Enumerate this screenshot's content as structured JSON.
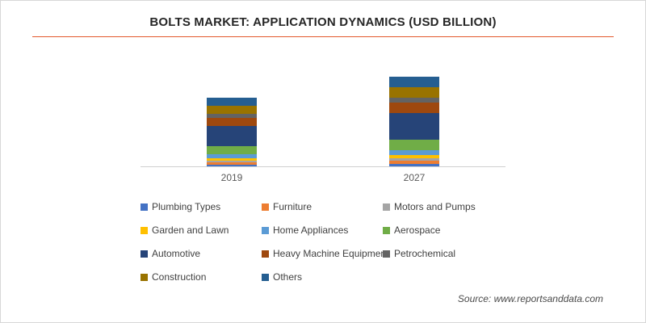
{
  "chart_data": {
    "type": "bar",
    "stacked": true,
    "title": "BOLTS MARKET: APPLICATION DYNAMICS (USD BILLION)",
    "categories": [
      "2019",
      "2027"
    ],
    "series": [
      {
        "name": "Plumbing Types",
        "color": "#4472C4",
        "values": [
          0.2,
          0.3
        ]
      },
      {
        "name": "Furniture",
        "color": "#ED7D31",
        "values": [
          0.3,
          0.4
        ]
      },
      {
        "name": "Motors and Pumps",
        "color": "#A5A5A5",
        "values": [
          0.2,
          0.3
        ]
      },
      {
        "name": "Garden and Lawn",
        "color": "#FFC000",
        "values": [
          0.3,
          0.4
        ]
      },
      {
        "name": "Home Appliances",
        "color": "#5B9BD5",
        "values": [
          0.5,
          0.6
        ]
      },
      {
        "name": "Aerospace",
        "color": "#70AD47",
        "values": [
          1.0,
          1.3
        ]
      },
      {
        "name": "Automotive",
        "color": "#264478",
        "values": [
          2.5,
          3.3
        ]
      },
      {
        "name": "Heavy Machine Equipment",
        "color": "#9E480E",
        "values": [
          1.0,
          1.3
        ]
      },
      {
        "name": "Petrochemical",
        "color": "#636363",
        "values": [
          0.5,
          0.6
        ]
      },
      {
        "name": "Construction",
        "color": "#997300",
        "values": [
          1.0,
          1.3
        ]
      },
      {
        "name": "Others",
        "color": "#255E91",
        "values": [
          1.0,
          1.3
        ]
      }
    ],
    "ylim": [
      0,
      12
    ],
    "grid": false,
    "legend_position": "bottom",
    "y_axis_visible": false
  },
  "source": "Source: www.reportsanddata.com",
  "accent_rule_color": "#E2582C"
}
